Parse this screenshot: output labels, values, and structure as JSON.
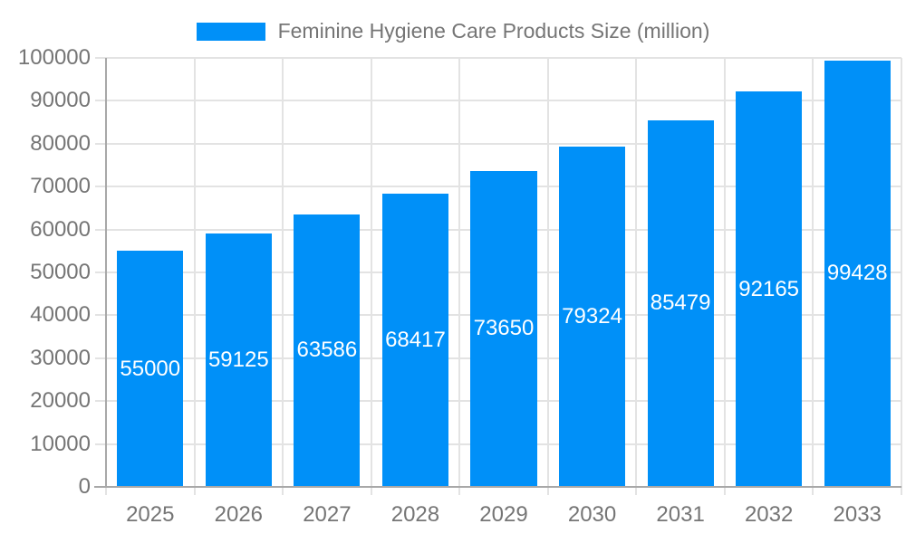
{
  "page": {
    "background": "#ffffff"
  },
  "chart_data": {
    "type": "bar",
    "title": "",
    "series_name": "Feminine Hygiene Care Products Size (million)",
    "categories": [
      "2025",
      "2026",
      "2027",
      "2028",
      "2029",
      "2030",
      "2031",
      "2032",
      "2033"
    ],
    "values": [
      55000,
      59125,
      63586,
      68417,
      73650,
      79324,
      85479,
      92165,
      99428
    ],
    "xlabel": "",
    "ylabel": "",
    "ylim": [
      0,
      100000
    ],
    "ytick_step": 10000,
    "y_ticks": [
      0,
      10000,
      20000,
      30000,
      40000,
      50000,
      60000,
      70000,
      80000,
      90000,
      100000
    ],
    "grid": true,
    "legend_position": "top",
    "bar_color": "#0090F8",
    "data_label_color": "#ffffff",
    "axis_label_color": "#757575",
    "legend_label_color": "#757575",
    "gridline_color": "#e3e3e3",
    "axis_line_color": "#a8a8a8"
  }
}
